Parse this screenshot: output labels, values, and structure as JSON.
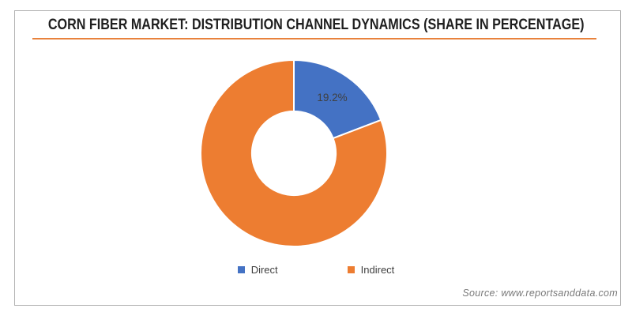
{
  "page": {
    "title": "CORN FIBER MARKET: DISTRIBUTION CHANNEL DYNAMICS (SHARE IN PERCENTAGE)",
    "source": "Source: www.reportsanddata.com"
  },
  "colors": {
    "direct_blue": "#4472C4",
    "indirect_orange": "#ED7D31",
    "title_underline": "#E8823C",
    "frame_border": "#B3B3B3",
    "slice_label_text": "#404040",
    "source_text": "#7A7A7A"
  },
  "chart_data": {
    "type": "pie",
    "subtype": "donut",
    "title": "CORN FIBER MARKET: DISTRIBUTION CHANNEL DYNAMICS (SHARE IN PERCENTAGE)",
    "categories": [
      "Direct",
      "Indirect"
    ],
    "values": [
      19.2,
      80.8
    ],
    "slice_labels": [
      "19.2%",
      ""
    ],
    "colors": [
      "#4472C4",
      "#ED7D31"
    ],
    "label_color": "#404040",
    "start_angle_deg": 0,
    "direction": "clockwise",
    "inner_radius_ratio": 0.45,
    "legend_position": "bottom"
  },
  "legend": {
    "items": [
      {
        "label": "Direct",
        "color": "#4472C4"
      },
      {
        "label": "Indirect",
        "color": "#ED7D31"
      }
    ]
  }
}
